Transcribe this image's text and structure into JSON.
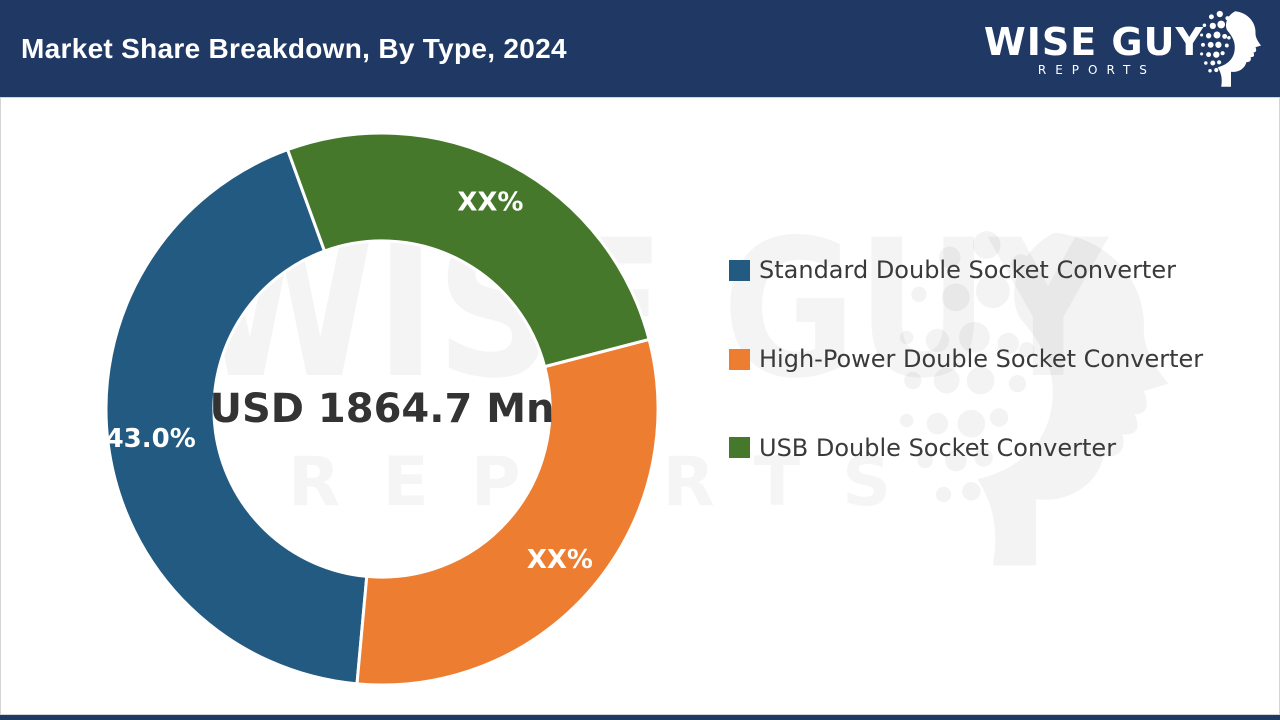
{
  "header": {
    "title": "Market Share Breakdown, By Type, 2024",
    "bg_color": "#1f3864",
    "logo": {
      "line1": "WISE GUY",
      "line2": "REPORTS"
    }
  },
  "chart_data": {
    "type": "pie",
    "subtype": "donut",
    "title": "Market Share Breakdown, By Type, 2024",
    "center_text": "USD 1864.7 Mn",
    "start_angle_deg": 110,
    "direction": "counterclockwise",
    "inner_radius_ratio": 0.609,
    "label_radius_ratio": 0.845,
    "legend_position": "right",
    "segments": [
      {
        "name": "Standard Double Socket Converter",
        "label": "43.0%",
        "value_pct": 43.0,
        "color": "#235a82"
      },
      {
        "name": "High-Power Double Socket Converter",
        "label": "XX%",
        "value_pct": 30.5,
        "color": "#ed7d31"
      },
      {
        "name": "USB Double Socket Converter",
        "label": "XX%",
        "value_pct": 26.5,
        "color": "#45782a"
      }
    ]
  },
  "watermark": {
    "line1": "WISE GUY",
    "line2": "REPORTS"
  }
}
